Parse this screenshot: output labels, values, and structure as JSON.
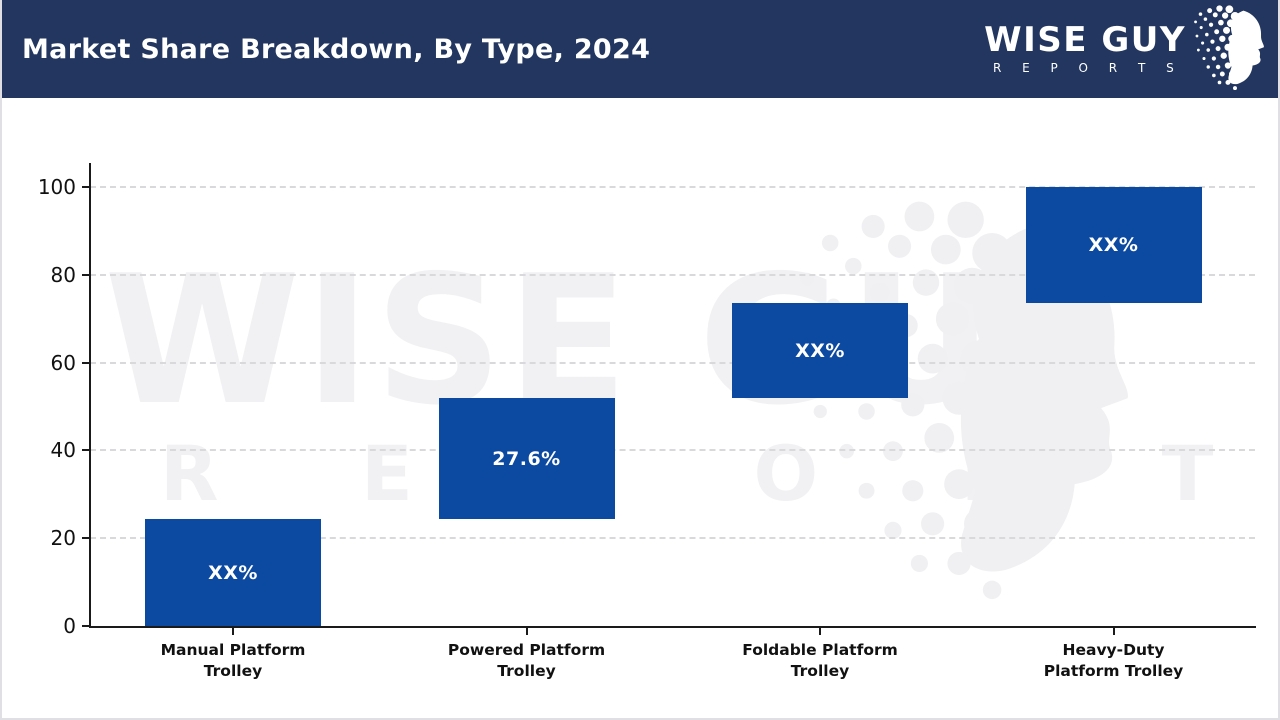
{
  "header": {
    "title": "Market Share Breakdown, By Type, 2024",
    "bg_color": "#22365F",
    "logo": {
      "line1": "WISE GUY",
      "line2": "R E P O R T S"
    }
  },
  "watermark": {
    "line1": "WISE GUY",
    "line2": "R E P O R T S"
  },
  "chart_data": {
    "type": "bar",
    "subtype": "floating-segment-waterfall",
    "title": "Market Share Breakdown, By Type, 2024",
    "xlabel": "",
    "ylabel": "",
    "ylim": [
      0,
      100
    ],
    "yticks": [
      0,
      20,
      40,
      60,
      80,
      100
    ],
    "grid": "horizontal-dashed",
    "legend": "none",
    "bar_color": "#0C49A0",
    "value_label_color": "#ffffff",
    "categories": [
      "Manual Platform Trolley",
      "Powered Platform Trolley",
      "Foldable Platform Trolley",
      "Heavy-Duty Platform Trolley"
    ],
    "bars": [
      {
        "category": "Manual Platform Trolley",
        "label_lines": [
          "Manual Platform",
          "Trolley"
        ],
        "from": 0,
        "to": 24.3,
        "height": 24.3,
        "value_label": "XX%"
      },
      {
        "category": "Powered Platform Trolley",
        "label_lines": [
          "Powered Platform",
          "Trolley"
        ],
        "from": 24.3,
        "to": 51.9,
        "height": 27.6,
        "value_label": "27.6%"
      },
      {
        "category": "Foldable Platform Trolley",
        "label_lines": [
          "Foldable Platform",
          "Trolley"
        ],
        "from": 51.9,
        "to": 73.5,
        "height": 21.6,
        "value_label": "XX%"
      },
      {
        "category": "Heavy-Duty Platform Trolley",
        "label_lines": [
          "Heavy-Duty",
          "Platform Trolley"
        ],
        "from": 73.5,
        "to": 100,
        "height": 26.5,
        "value_label": "XX%"
      }
    ]
  }
}
